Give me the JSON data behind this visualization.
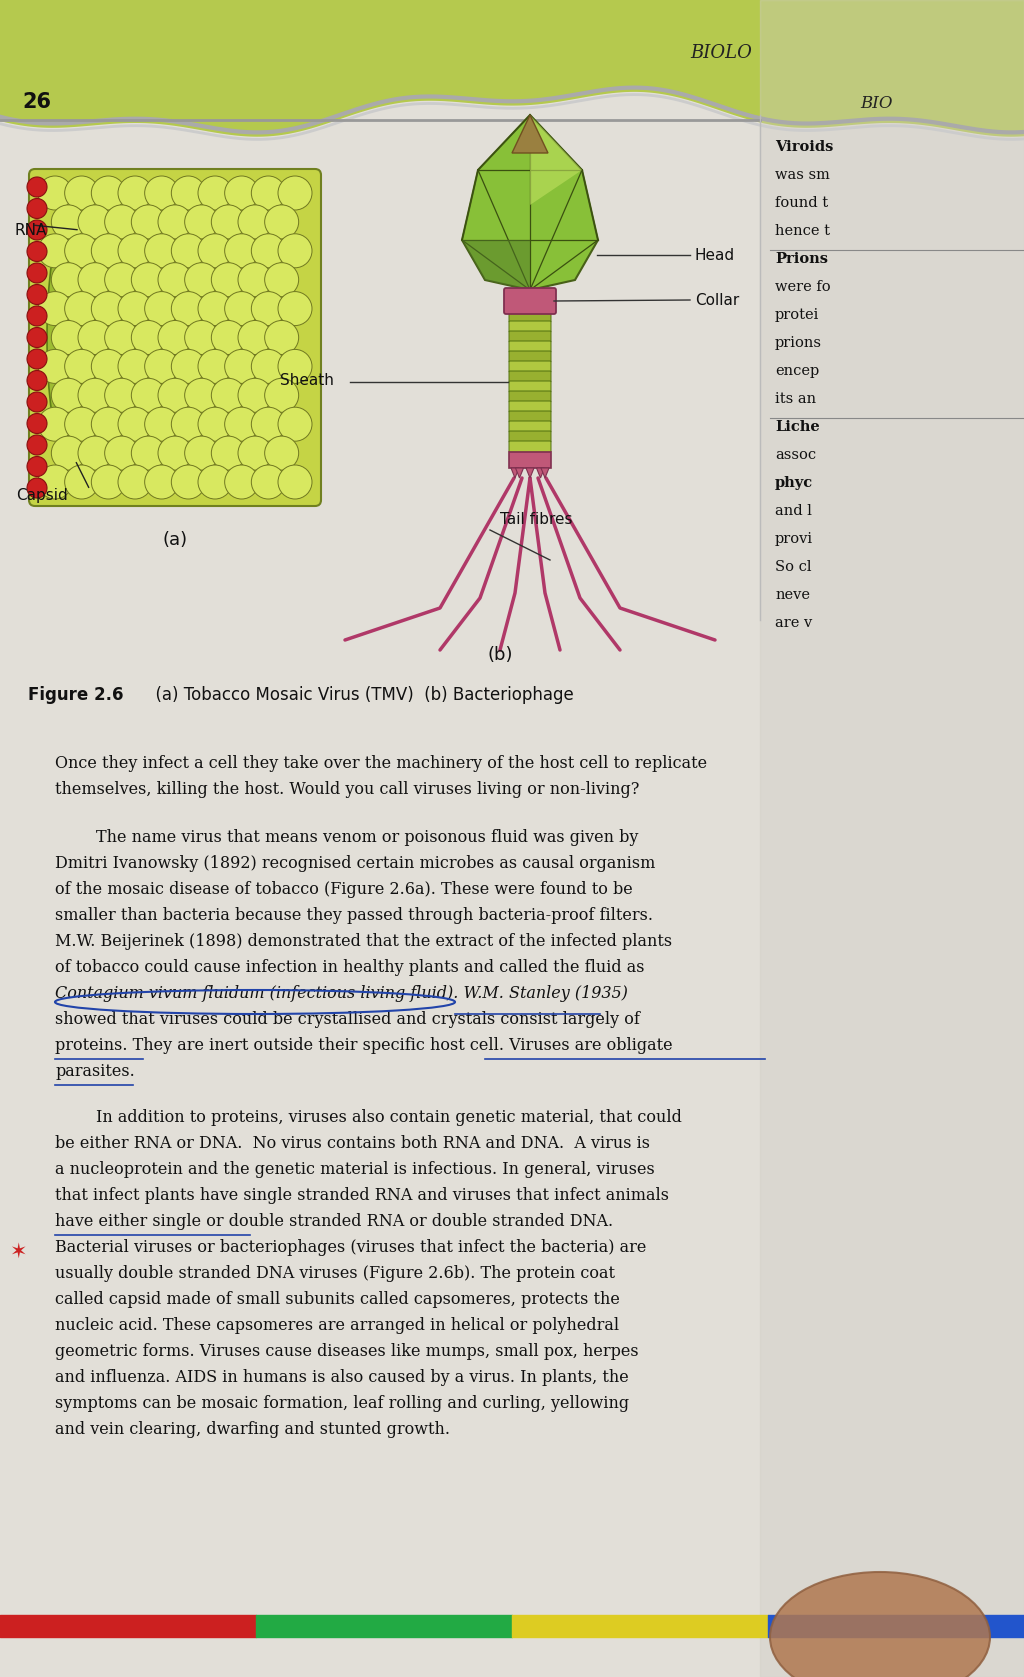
{
  "page_number": "26",
  "header_text": "BIOLO",
  "header_right": "BIO",
  "bg_color_top": "#b5c94e",
  "bg_color_page": "#e2dfd8",
  "figure_caption_bold": "Figure 2.6",
  "figure_caption_rest": "  (a) Tobacco Mosaic Virus (TMV)  (b) Bacteriophage",
  "label_a": "(a)",
  "label_b": "(b)",
  "label_rna": "RNA",
  "label_capsid": "Capsid",
  "label_head": "Head",
  "label_collar": "Collar",
  "label_sheath": "Sheath",
  "label_tail_fibres": "Tail fibres",
  "p1_lines": [
    "Once they infect a cell they take over the machinery of the host cell to replicate",
    "themselves, killing the host. Would you call viruses living or non-living?"
  ],
  "p2_lines": [
    "        The name virus that means venom or poisonous fluid was given by",
    "Dmitri Ivanowsky (1892) recognised certain microbes as causal organism",
    "of the mosaic disease of tobacco (Figure 2.6a). These were found to be",
    "smaller than bacteria because they passed through bacteria-proof filters.",
    "M.W. Beijerinek (1898) demonstrated that the extract of the infected plants",
    "of tobacco could cause infection in healthy plants and called the fluid as",
    "Contagium vivum fluidum (infectious living fluid). W.M. Stanley (1935)",
    "showed that viruses could be crystallised and crystals consist largely of",
    "proteins. They are inert outside their specific host cell. Viruses are obligate",
    "parasites."
  ],
  "p3_lines": [
    "        In addition to proteins, viruses also contain genetic material, that could",
    "be either RNA or DNA.  No virus contains both RNA and DNA.  A virus is",
    "a nucleoprotein and the genetic material is infectious. In general, viruses",
    "that infect plants have single stranded RNA and viruses that infect animals",
    "have either single or double stranded RNA or double stranded DNA.",
    "Bacterial viruses or bacteriophages (viruses that infect the bacteria) are",
    "usually double stranded DNA viruses (Figure 2.6b). The protein coat",
    "called capsid made of small subunits called capsomeres, protects the",
    "nucleic acid. These capsomeres are arranged in helical or polyhedral",
    "geometric forms. Viruses cause diseases like mumps, small pox, herpes",
    "and influenza. AIDS in humans is also caused by a virus. In plants, the",
    "symptoms can be mosaic formation, leaf rolling and curling, yellowing",
    "and vein clearing, dwarfing and stunted growth."
  ],
  "sidebar_lines": [
    [
      "Viroids",
      true
    ],
    [
      "was sm",
      false
    ],
    [
      "found t",
      false
    ],
    [
      "hence t",
      false
    ],
    [
      "Prions",
      true
    ],
    [
      "were fo",
      false
    ],
    [
      "protei",
      false
    ],
    [
      "prions",
      false
    ],
    [
      "encep",
      false
    ],
    [
      "its an",
      false
    ],
    [
      "Liche",
      true
    ],
    [
      "assoc",
      false
    ],
    [
      "phyc",
      true
    ],
    [
      "and l",
      false
    ],
    [
      "provi",
      false
    ],
    [
      "So cl",
      false
    ],
    [
      "neve",
      false
    ],
    [
      "are v",
      false
    ]
  ]
}
